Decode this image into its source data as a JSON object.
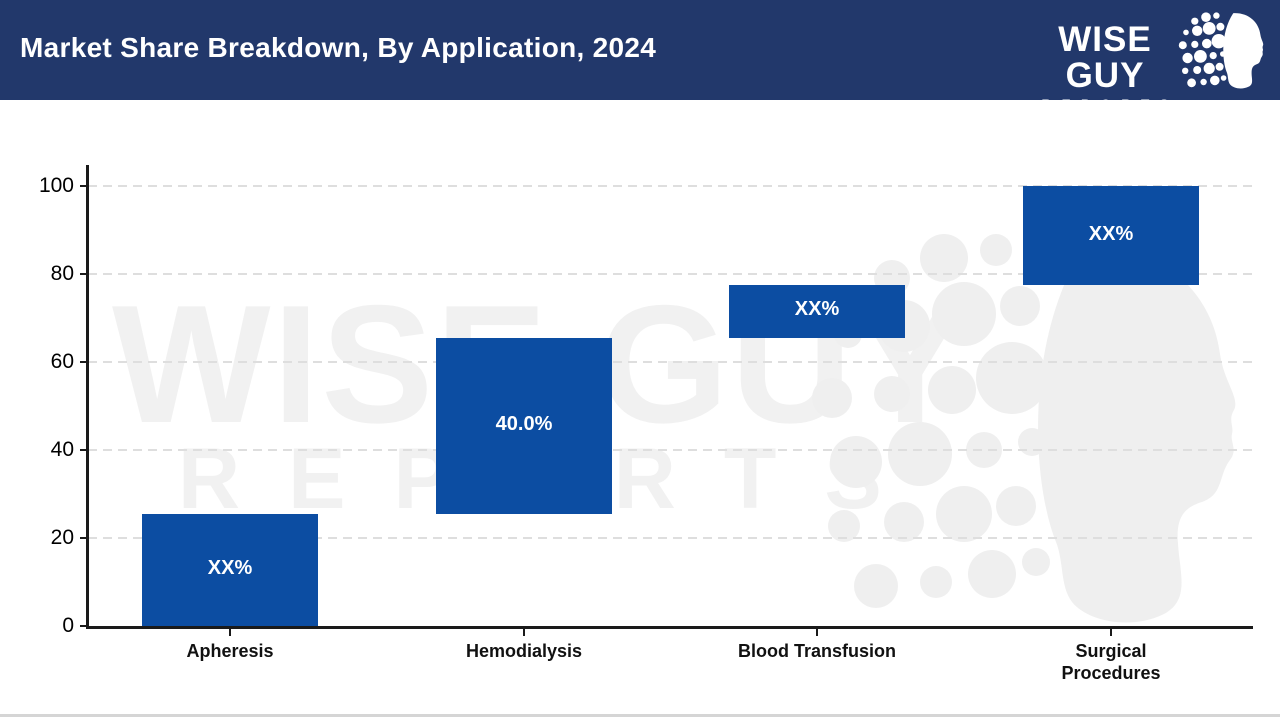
{
  "header": {
    "title": "Market Share Breakdown, By Application, 2024",
    "logo_line1": "WISE GUY",
    "logo_line2": "REPORTS"
  },
  "watermark": {
    "line1": "WISE GUY",
    "line2": "REPORTS"
  },
  "colors": {
    "header_bg": "#22386B",
    "bar": "#0C4DA2",
    "bar_label": "#FFFFFF",
    "grid": "#DEDEDE",
    "axis": "#1A1A1A",
    "watermark": "#F1F1F1",
    "footer_line": "#D5D5D5"
  },
  "chart_data": {
    "type": "bar",
    "subtype": "floating-waterfall",
    "title": "Market Share Breakdown, By Application, 2024",
    "xlabel": "",
    "ylabel": "",
    "categories": [
      "Apheresis",
      "Hemodialysis",
      "Blood Transfusion",
      "Surgical Procedures"
    ],
    "category_display_lines": [
      [
        "Apheresis"
      ],
      [
        "Hemodialysis"
      ],
      [
        "Blood Transfusion"
      ],
      [
        "Surgical",
        "Procedures"
      ]
    ],
    "segments": [
      {
        "start": 0,
        "end": 25.5,
        "label": "XX%"
      },
      {
        "start": 25.5,
        "end": 65.5,
        "label": "40.0%"
      },
      {
        "start": 65.5,
        "end": 77.5,
        "label": "XX%"
      },
      {
        "start": 77.5,
        "end": 100,
        "label": "XX%"
      }
    ],
    "yticks": [
      0,
      20,
      40,
      60,
      80,
      100
    ],
    "ylim": [
      0,
      105
    ],
    "grid": "horizontal-dashed",
    "legend": "none"
  }
}
